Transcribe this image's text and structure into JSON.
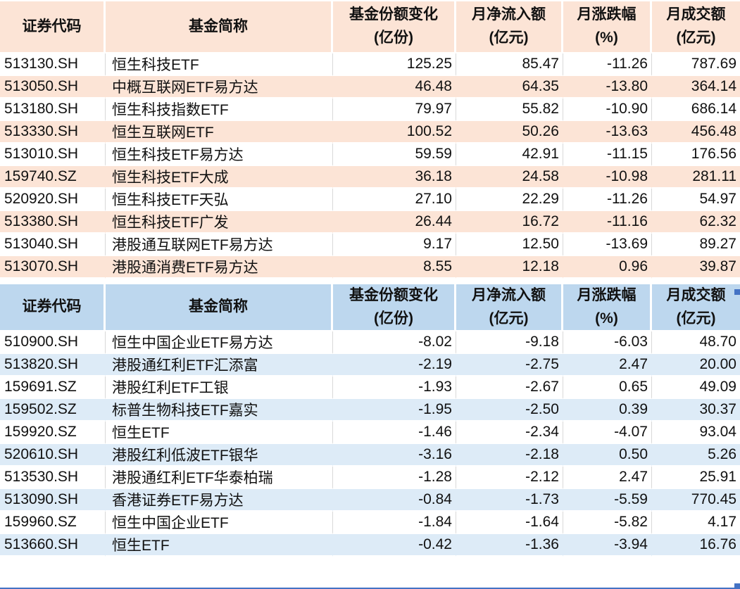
{
  "selection": {
    "accent_color": "#4472C4"
  },
  "grid": {
    "line_color": "#d9d9d9",
    "separator_color": "#ffffff"
  },
  "tables": [
    {
      "id": "inflow",
      "theme": {
        "header_bg": "#FCE4D6",
        "stripe_bg": "#FCE4D6",
        "row_bg": "#FFFFFF"
      },
      "columns": [
        {
          "key": "code",
          "title": "证券代码",
          "unit": ""
        },
        {
          "key": "name",
          "title": "基金简称",
          "unit": ""
        },
        {
          "key": "share_chg",
          "title": "基金份额变化",
          "unit": "(亿份)"
        },
        {
          "key": "inflow",
          "title": "月净流入额",
          "unit": "(亿元)"
        },
        {
          "key": "pct",
          "title": "月涨跌幅",
          "unit": "(%)"
        },
        {
          "key": "turnover",
          "title": "月成交额",
          "unit": "(亿元)"
        }
      ],
      "rows": [
        {
          "code": "513130.SH",
          "name": "恒生科技ETF",
          "share_chg": "125.25",
          "inflow": "85.47",
          "pct": "-11.26",
          "turnover": "787.69"
        },
        {
          "code": "513050.SH",
          "name": "中概互联网ETF易方达",
          "share_chg": "46.48",
          "inflow": "64.35",
          "pct": "-13.80",
          "turnover": "364.14"
        },
        {
          "code": "513180.SH",
          "name": "恒生科技指数ETF",
          "share_chg": "79.97",
          "inflow": "55.82",
          "pct": "-10.90",
          "turnover": "686.14"
        },
        {
          "code": "513330.SH",
          "name": "恒生互联网ETF",
          "share_chg": "100.52",
          "inflow": "50.26",
          "pct": "-13.63",
          "turnover": "456.48"
        },
        {
          "code": "513010.SH",
          "name": "恒生科技ETF易方达",
          "share_chg": "59.59",
          "inflow": "42.91",
          "pct": "-11.15",
          "turnover": "176.56"
        },
        {
          "code": "159740.SZ",
          "name": "恒生科技ETF大成",
          "share_chg": "36.18",
          "inflow": "24.58",
          "pct": "-10.98",
          "turnover": "281.11"
        },
        {
          "code": "520920.SH",
          "name": "恒生科技ETF天弘",
          "share_chg": "27.10",
          "inflow": "22.29",
          "pct": "-11.26",
          "turnover": "54.97"
        },
        {
          "code": "513380.SH",
          "name": "恒生科技ETF广发",
          "share_chg": "26.44",
          "inflow": "16.72",
          "pct": "-11.16",
          "turnover": "62.32"
        },
        {
          "code": "513040.SH",
          "name": "港股通互联网ETF易方达",
          "share_chg": "9.17",
          "inflow": "12.50",
          "pct": "-13.69",
          "turnover": "89.27"
        },
        {
          "code": "513070.SH",
          "name": "港股通消费ETF易方达",
          "share_chg": "8.55",
          "inflow": "12.18",
          "pct": "0.96",
          "turnover": "39.87"
        }
      ]
    },
    {
      "id": "outflow",
      "theme": {
        "header_bg": "#BDD7EE",
        "stripe_bg": "#DDEBF7",
        "row_bg": "#FFFFFF"
      },
      "columns": [
        {
          "key": "code",
          "title": "证券代码",
          "unit": ""
        },
        {
          "key": "name",
          "title": "基金简称",
          "unit": ""
        },
        {
          "key": "share_chg",
          "title": "基金份额变化",
          "unit": "(亿份)"
        },
        {
          "key": "inflow",
          "title": "月净流入额",
          "unit": "(亿元)"
        },
        {
          "key": "pct",
          "title": "月涨跌幅",
          "unit": "(%)"
        },
        {
          "key": "turnover",
          "title": "月成交额",
          "unit": "(亿元)"
        }
      ],
      "rows": [
        {
          "code": "510900.SH",
          "name": "恒生中国企业ETF易方达",
          "share_chg": "-8.02",
          "inflow": "-9.18",
          "pct": "-6.03",
          "turnover": "48.70"
        },
        {
          "code": "513820.SH",
          "name": "港股通红利ETF汇添富",
          "share_chg": "-2.19",
          "inflow": "-2.75",
          "pct": "2.47",
          "turnover": "20.00"
        },
        {
          "code": "159691.SZ",
          "name": "港股红利ETF工银",
          "share_chg": "-1.93",
          "inflow": "-2.67",
          "pct": "0.65",
          "turnover": "49.09"
        },
        {
          "code": "159502.SZ",
          "name": "标普生物科技ETF嘉实",
          "share_chg": "-1.95",
          "inflow": "-2.50",
          "pct": "0.39",
          "turnover": "30.37"
        },
        {
          "code": "159920.SZ",
          "name": "恒生ETF",
          "share_chg": "-1.46",
          "inflow": "-2.34",
          "pct": "-4.07",
          "turnover": "93.04"
        },
        {
          "code": "520610.SH",
          "name": "港股红利低波ETF银华",
          "share_chg": "-3.16",
          "inflow": "-2.18",
          "pct": "0.50",
          "turnover": "5.26"
        },
        {
          "code": "513530.SH",
          "name": "港股通红利ETF华泰柏瑞",
          "share_chg": "-1.28",
          "inflow": "-2.12",
          "pct": "2.47",
          "turnover": "25.91"
        },
        {
          "code": "513090.SH",
          "name": "香港证券ETF易方达",
          "share_chg": "-0.84",
          "inflow": "-1.73",
          "pct": "-5.59",
          "turnover": "770.45"
        },
        {
          "code": "159960.SZ",
          "name": "恒生中国企业ETF",
          "share_chg": "-1.84",
          "inflow": "-1.64",
          "pct": "-5.82",
          "turnover": "4.17"
        },
        {
          "code": "513660.SH",
          "name": "恒生ETF",
          "share_chg": "-0.42",
          "inflow": "-1.36",
          "pct": "-3.94",
          "turnover": "16.76"
        }
      ]
    }
  ]
}
